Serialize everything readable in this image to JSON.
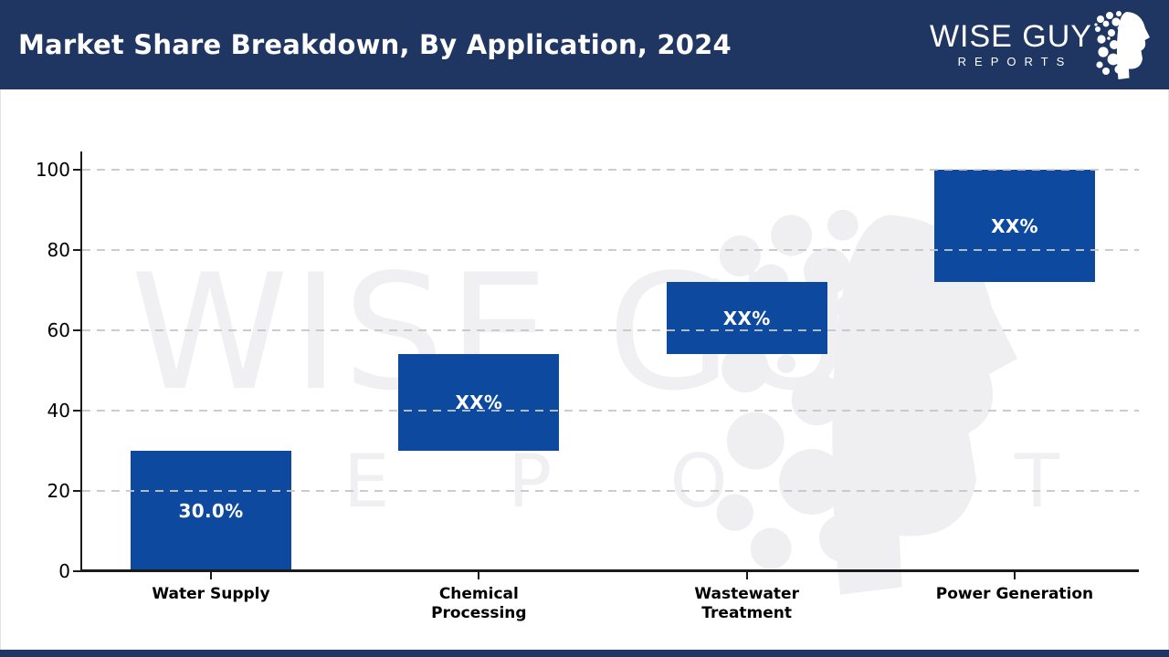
{
  "header": {
    "title": "Market Share Breakdown, By Application, 2024",
    "logo": {
      "line1": "WISE GUY",
      "line2": "REPORTS"
    }
  },
  "watermark": {
    "line1": "WISE GUY",
    "line2": "R E P O R T S"
  },
  "chart_data": {
    "type": "bar",
    "subtype": "waterfall",
    "title": "Market Share Breakdown, By Application, 2024",
    "categories": [
      "Water Supply",
      "Chemical Processing",
      "Wastewater Treatment",
      "Power Generation"
    ],
    "segments": [
      {
        "category": "Water Supply",
        "display": "Water Supply",
        "start": 0,
        "end": 30,
        "label": "30.0%"
      },
      {
        "category": "Chemical Processing",
        "display": "Chemical\nProcessing",
        "start": 30,
        "end": 54,
        "label": "XX%"
      },
      {
        "category": "Wastewater Treatment",
        "display": "Wastewater\nTreatment",
        "start": 54,
        "end": 72,
        "label": "XX%"
      },
      {
        "category": "Power Generation",
        "display": "Power Generation",
        "start": 72,
        "end": 100,
        "label": "XX%"
      }
    ],
    "y_ticks": [
      0,
      20,
      40,
      60,
      80,
      100
    ],
    "ylim": [
      0,
      100
    ],
    "grid": "horizontal-dashed",
    "legend": "none",
    "bar_color": "#0d499e",
    "bar_label_color": "#ffffff",
    "grid_color": "#c6c6c6",
    "axis_color": "#1a1a1a"
  },
  "colors": {
    "header_bg": "#1f3562",
    "footer_bg": "#1f3562",
    "watermark": "#f0f0f3",
    "background": "#ffffff"
  }
}
